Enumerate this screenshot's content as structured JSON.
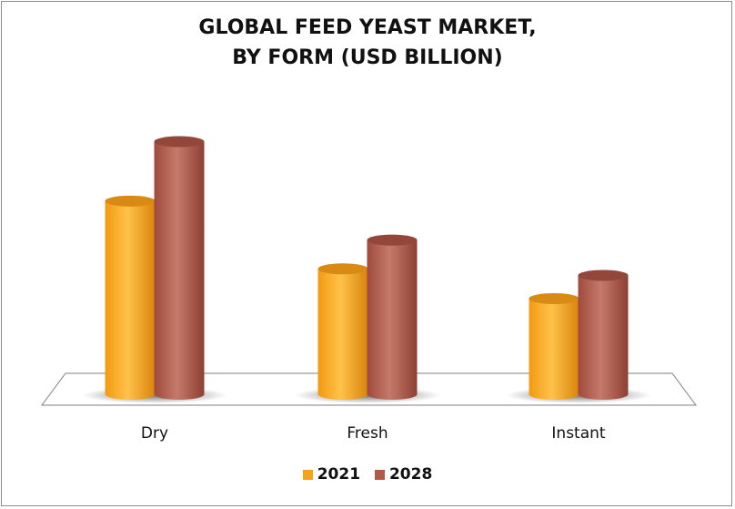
{
  "chart_data": {
    "type": "bar",
    "title": "GLOBAL FEED YEAST MARKET, BY FORM (USD BILLION)",
    "title_lines": [
      "GLOBAL FEED YEAST MARKET,",
      "BY FORM (USD BILLION)"
    ],
    "categories": [
      "Dry",
      "Fresh",
      "Instant"
    ],
    "series": [
      {
        "name": "2021",
        "values": [
          2.08,
          1.35,
          1.03
        ],
        "color": "#f5a31d"
      },
      {
        "name": "2028",
        "values": [
          2.72,
          1.66,
          1.28
        ],
        "color": "#b0584a"
      }
    ],
    "ylim": [
      0,
      3
    ],
    "grid": false,
    "legend_position": "bottom",
    "style": "3d-cylinder"
  }
}
